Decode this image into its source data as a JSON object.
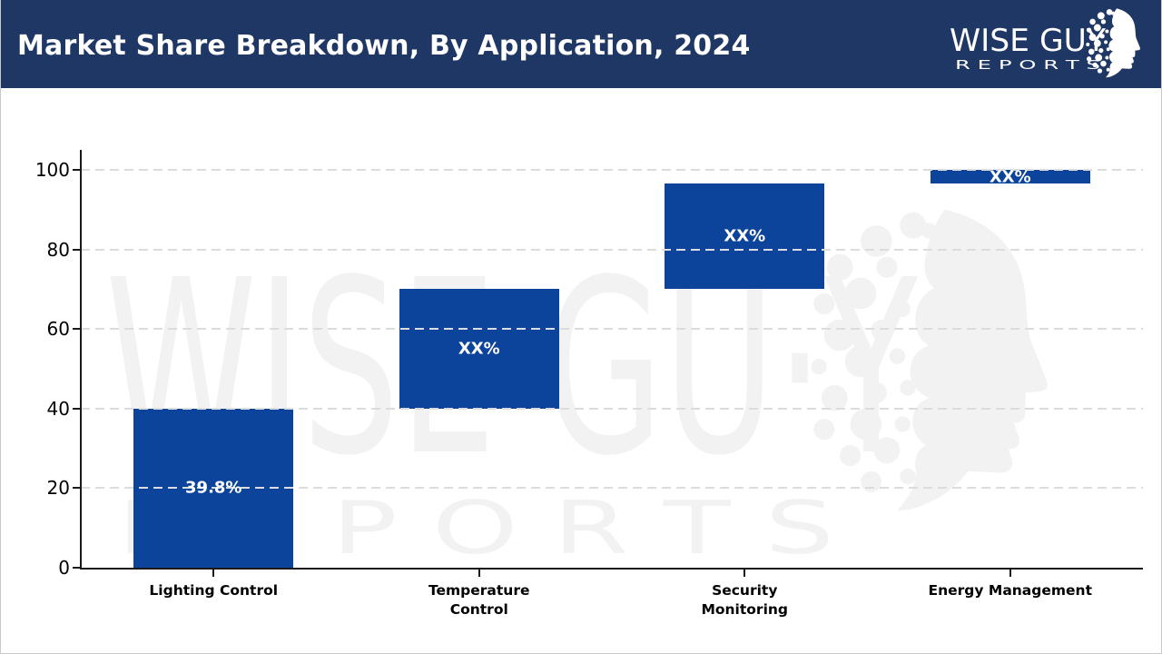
{
  "header": {
    "title": "Market Share Breakdown, By Application, 2024",
    "logo_line1": "WISE GUY",
    "logo_line2": "R E P O R T S"
  },
  "watermark": {
    "line1": "WISE GU·Y",
    "line2": "R E P O R T S"
  },
  "chart_data": {
    "type": "bar",
    "subtype": "floating-segment (waterfall style market share)",
    "title": "Market Share Breakdown, By Application, 2024",
    "categories": [
      "Lighting Control",
      "Temperature\nControl",
      "Security\nMonitoring",
      "Energy Management"
    ],
    "segments": [
      {
        "category": "Lighting Control",
        "from": 0,
        "to": 40,
        "label": "39.8%"
      },
      {
        "category": "Temperature Control",
        "from": 40,
        "to": 70,
        "label": "XX%"
      },
      {
        "category": "Security Monitoring",
        "from": 70,
        "to": 96.5,
        "label": "XX%"
      },
      {
        "category": "Energy Management",
        "from": 96.5,
        "to": 100,
        "label": "XX%"
      }
    ],
    "y_ticks": [
      0,
      20,
      40,
      60,
      80,
      100
    ],
    "ylim": [
      0,
      100
    ],
    "xlabel": "",
    "ylabel": "",
    "grid": "horizontal dashed, drawn above bars",
    "legend": "none",
    "bar_color": "#0d449b",
    "label_color_inside": "#ffffff"
  },
  "colors": {
    "header_bg": "#1f3765",
    "header_text": "#ffffff",
    "axis": "#1a1a1a",
    "gridline": "#dcdcdc",
    "watermark": "#f2f2f3",
    "page_border": "#c9c9c9"
  }
}
